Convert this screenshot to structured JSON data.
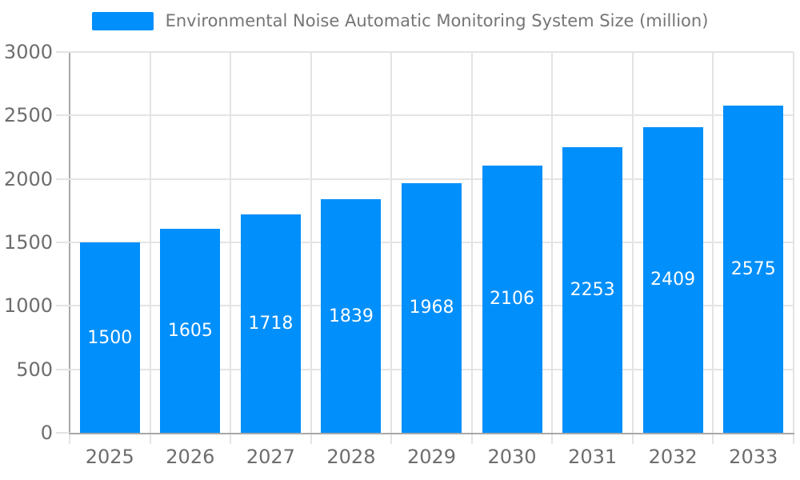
{
  "chart_data": {
    "type": "bar",
    "title": "Environmental Noise Automatic Monitoring System Size (million)",
    "categories": [
      "2025",
      "2026",
      "2027",
      "2028",
      "2029",
      "2030",
      "2031",
      "2032",
      "2033"
    ],
    "values": [
      1500,
      1605,
      1718,
      1839,
      1968,
      2106,
      2253,
      2409,
      2575
    ],
    "xlabel": "",
    "ylabel": "",
    "ylim": [
      0,
      3000
    ],
    "yticks": [
      0,
      500,
      1000,
      1500,
      2000,
      2500,
      3000
    ],
    "grid": "horizontal and vertical category-boundary gridlines",
    "legend_position": "top-center",
    "colors": {
      "bar": "#008FFB",
      "bar_label": "#ffffff",
      "axis_text": "#6d6d6d",
      "title_text": "#757575",
      "gridline": "#e4e4e4",
      "axis_line": "#a8a8a8"
    }
  }
}
